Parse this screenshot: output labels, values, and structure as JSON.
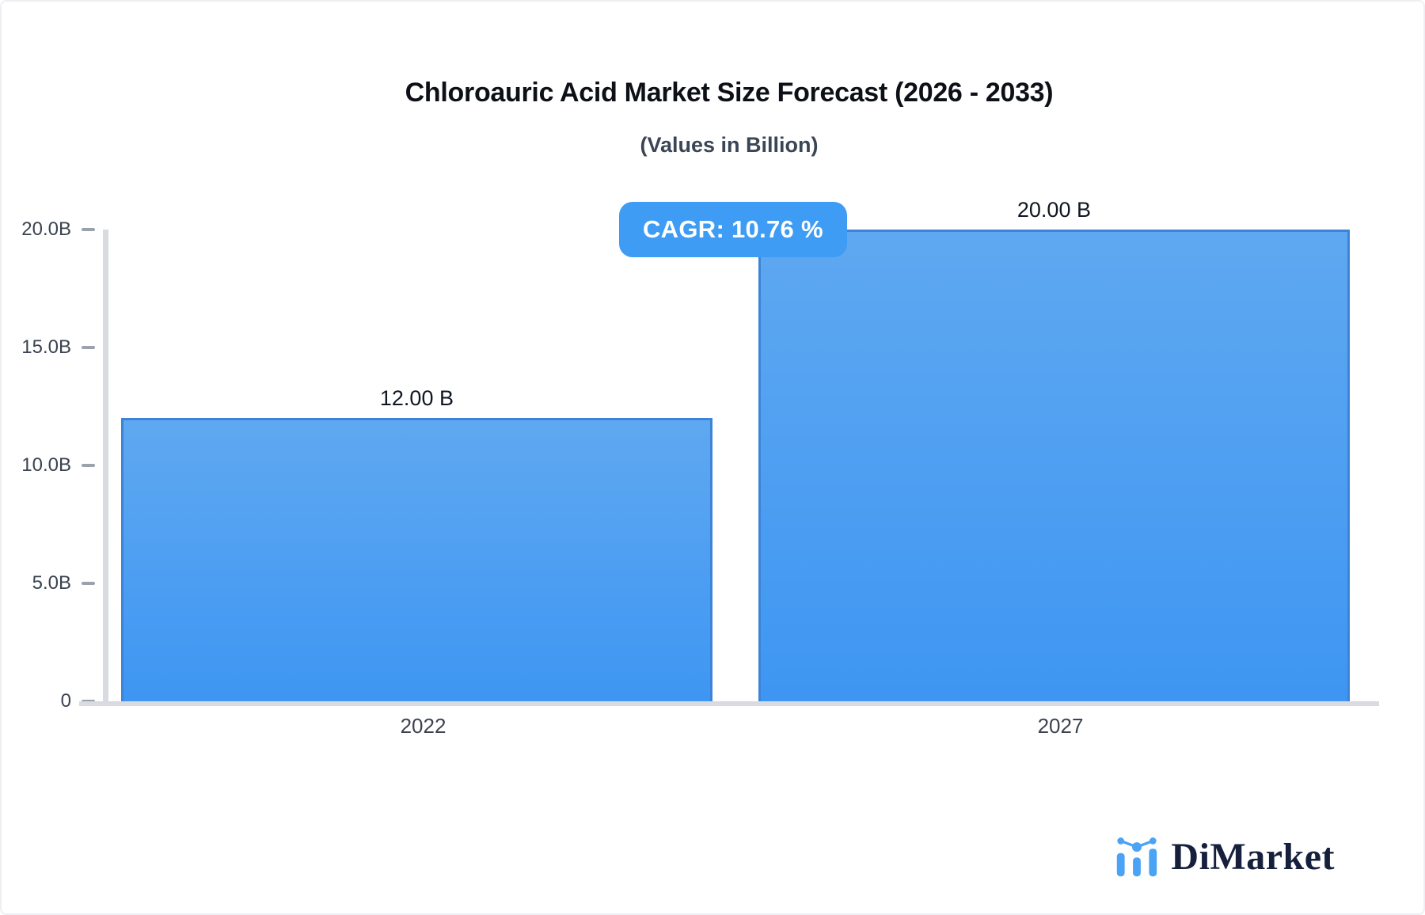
{
  "header": {
    "title": "Chloroauric Acid Market Size Forecast (2026 - 2033)",
    "subtitle": "(Values in Billion)"
  },
  "annotation": {
    "cagr_label": "CAGR: 10.76 %"
  },
  "footer": {
    "brand": "DiMarket",
    "logo_icon": "bar-line-chart-icon"
  },
  "colors": {
    "bar_fill_top": "#5FA8F1",
    "bar_fill_bottom": "#3E96F2",
    "bar_border": "#3C84D8",
    "badge_bg": "#3E9CF4",
    "axis_line": "#D8DBE0",
    "tick_color": "#9AA2AC",
    "axis_label": "#3B4350",
    "label_color": "#101722",
    "title_color": "#0D1117",
    "subtitle_color": "#3A4556",
    "logo_navy": "#16203C",
    "logo_blue": "#4BA3F5",
    "page_border": "#EDEFF2"
  },
  "chart_data": {
    "type": "bar",
    "title": "Chloroauric Acid Market Size Forecast (2026 - 2033)",
    "subtitle": "(Values in Billion)",
    "categories": [
      "2022",
      "2027"
    ],
    "values": [
      12.0,
      20.0
    ],
    "bar_labels": [
      "12.00 B",
      "20.00 B"
    ],
    "xlabel": "",
    "ylabel": "",
    "ylim": [
      0,
      20
    ],
    "yticks": [
      {
        "v": 0,
        "label": "0"
      },
      {
        "v": 5,
        "label": "5.0B"
      },
      {
        "v": 10,
        "label": "10.0B"
      },
      {
        "v": 15,
        "label": "15.0B"
      },
      {
        "v": 20,
        "label": "20.0B"
      }
    ],
    "grid": false,
    "legend": false,
    "annotations": [
      "CAGR: 10.76 %"
    ]
  }
}
